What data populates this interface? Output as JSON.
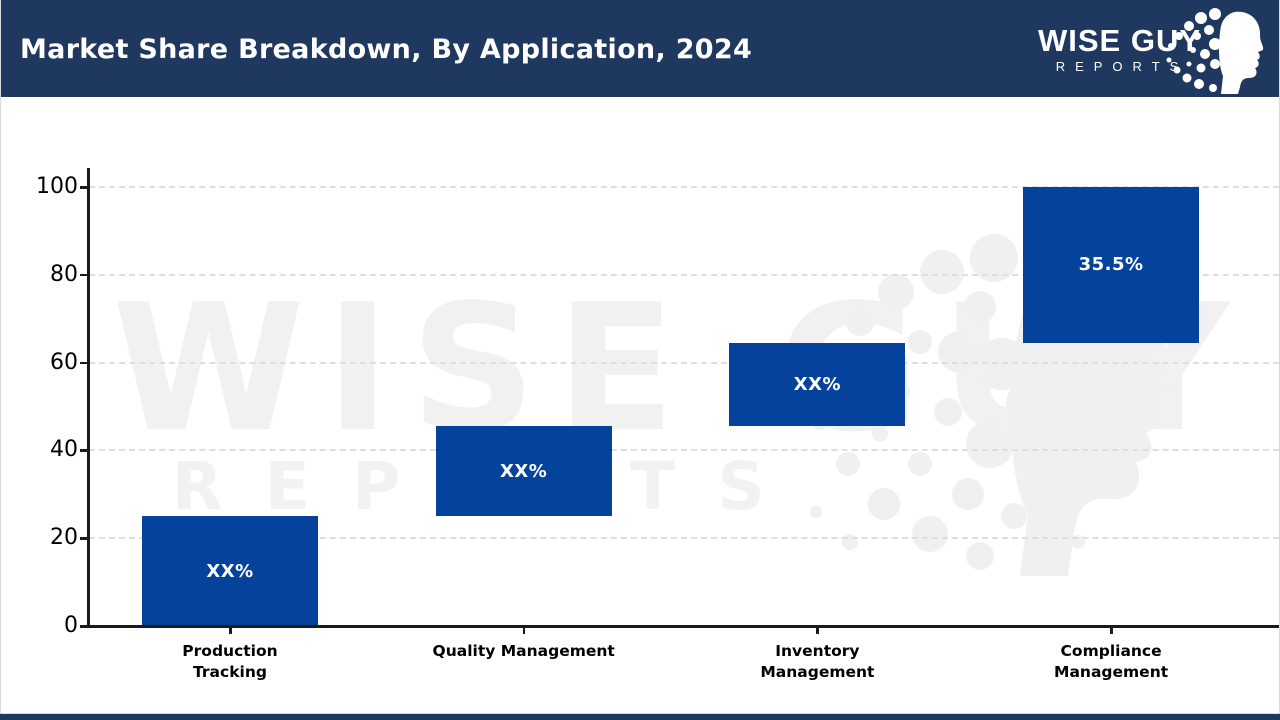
{
  "page": {
    "background": "#ffffff",
    "border_color": "#d9d9d9",
    "footer_bar_color": "#1f3860"
  },
  "header": {
    "background": "#1f3860",
    "title": "Market Share Breakdown, By Application, 2024",
    "logo": {
      "line1": "WISE GUY",
      "line2": "REPORTS",
      "face_icon": "dotted-profile-head"
    }
  },
  "watermark": {
    "line1": "WISE GUY",
    "line2": "REPORTS",
    "head_icon": "dotted-profile-head",
    "color": "#f1f1f1"
  },
  "chart_data": {
    "type": "bar",
    "subtype": "floating-segment-waterfall",
    "title": "Market Share Breakdown, By Application, 2024",
    "xlabel": "",
    "ylabel": "",
    "ylim": [
      0,
      104
    ],
    "yticks": [
      0,
      20,
      40,
      60,
      80,
      100
    ],
    "grid": "horizontal-dashed",
    "legend_position": "none",
    "bar_color": "#05429b",
    "bar_label_color": "#ffffff",
    "categories": [
      "Production Tracking",
      "Quality Management",
      "Inventory Management",
      "Compliance Management"
    ],
    "category_lines": [
      [
        "Production",
        "Tracking"
      ],
      [
        "Quality Management"
      ],
      [
        "Inventory",
        "Management"
      ],
      [
        "Compliance",
        "Management"
      ]
    ],
    "segments": [
      {
        "category": "Production Tracking",
        "start": 0,
        "end": 25,
        "label": "XX%"
      },
      {
        "category": "Quality Management",
        "start": 25,
        "end": 45.5,
        "label": "XX%"
      },
      {
        "category": "Inventory Management",
        "start": 45.5,
        "end": 64.5,
        "label": "XX%"
      },
      {
        "category": "Compliance Management",
        "start": 64.5,
        "end": 100,
        "label": "35.5%"
      }
    ]
  }
}
